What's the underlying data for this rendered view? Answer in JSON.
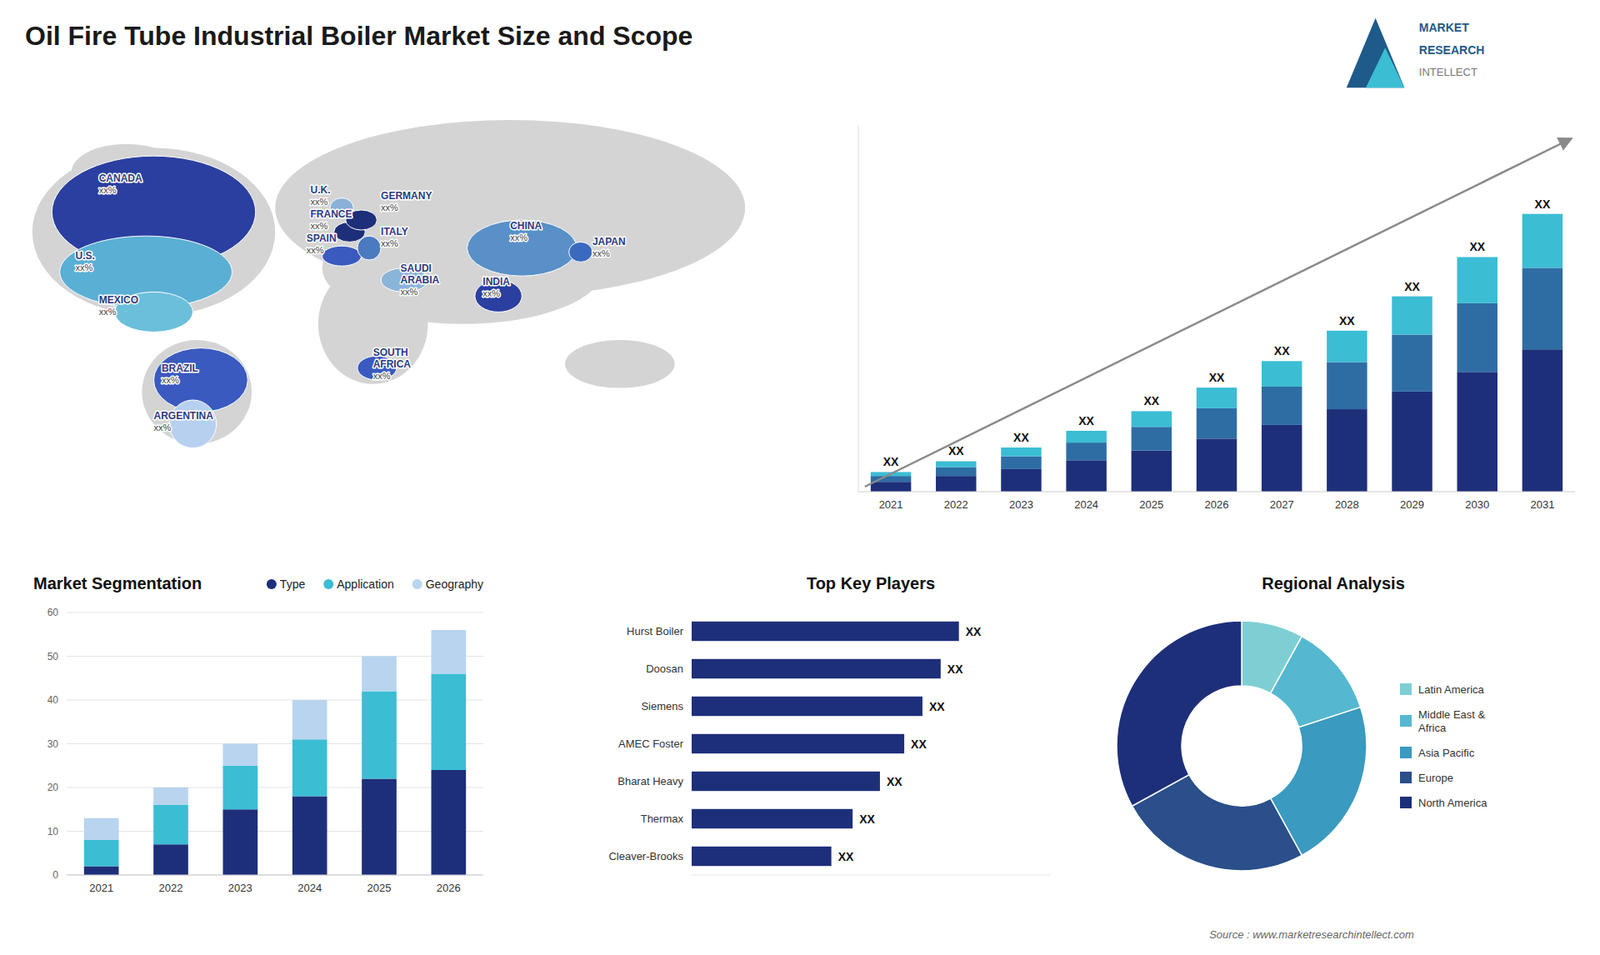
{
  "title": "Oil Fire Tube Industrial Boiler Market Size and Scope",
  "source": "Source : www.marketresearchintellect.com",
  "logo": {
    "text": [
      "MARKET",
      "RESEARCH",
      "INTELLECT"
    ],
    "colors": [
      "#1e5a8a",
      "#3bbdd4"
    ]
  },
  "chart_data": [
    {
      "type": "map",
      "categories": [
        "CANADA",
        "U.S.",
        "MEXICO",
        "BRAZIL",
        "ARGENTINA",
        "U.K.",
        "FRANCE",
        "SPAIN",
        "GERMANY",
        "ITALY",
        "SAUDI\nARABIA",
        "SOUTH\nAFRICA",
        "CHINA",
        "INDIA",
        "JAPAN"
      ],
      "value_labels": [
        "xx%",
        "xx%",
        "xx%",
        "xx%",
        "xx%",
        "xx%",
        "xx%",
        "xx%",
        "xx%",
        "xx%",
        "xx%",
        "xx%",
        "xx%",
        "xx%",
        "xx%"
      ],
      "colors": [
        "#2a3fa0",
        "#5ab0d4",
        "#6bbfda",
        "#3a5abf",
        "#b8d0ef",
        "#8ab0d8",
        "#1e2f7a",
        "#3a5abf",
        "#1e2f7a",
        "#4a7abf",
        "#8ab4d8",
        "#3a5abf",
        "#5a90c8",
        "#2a3fa0",
        "#3a6abf"
      ]
    },
    {
      "type": "bar",
      "stacked": true,
      "categories": [
        "2021",
        "2022",
        "2023",
        "2024",
        "2025",
        "2026",
        "2027",
        "2028",
        "2029",
        "2030",
        "2031"
      ],
      "series": [
        {
          "color": "#1e2f7a",
          "values": [
            1.0,
            1.6,
            2.3,
            3.2,
            4.2,
            5.4,
            6.8,
            8.4,
            10.2,
            12.2,
            14.5
          ]
        },
        {
          "color": "#2e6da4",
          "values": [
            0.6,
            0.9,
            1.3,
            1.8,
            2.4,
            3.1,
            3.9,
            4.8,
            5.8,
            7.0,
            8.3
          ]
        },
        {
          "color": "#3bbdd4",
          "values": [
            0.4,
            0.6,
            0.9,
            1.2,
            1.6,
            2.1,
            2.6,
            3.2,
            3.9,
            4.7,
            5.5
          ],
          "value_labels": [
            "XX",
            "XX",
            "XX",
            "XX",
            "XX",
            "XX",
            "XX",
            "XX",
            "XX",
            "XX",
            "XX"
          ]
        }
      ],
      "ylim": [
        0,
        37.356
      ],
      "tick_labels": "x"
    },
    {
      "type": "bar",
      "stacked": true,
      "title": "Market Segmentation",
      "categories": [
        "2021",
        "2022",
        "2023",
        "2024",
        "2025",
        "2026"
      ],
      "series": [
        {
          "name": "Type",
          "color": "#1e2f7a",
          "values": [
            2,
            7,
            15,
            18,
            22,
            24
          ]
        },
        {
          "name": "Application",
          "color": "#3bbdd4",
          "values": [
            6,
            9,
            10,
            13,
            20,
            22
          ]
        },
        {
          "name": "Geography",
          "color": "#b8d4ef",
          "values": [
            5,
            4,
            5,
            9,
            8,
            10
          ]
        }
      ],
      "ylim": [
        0,
        60
      ],
      "yticks": [
        0,
        10,
        20,
        30,
        40,
        50,
        60
      ],
      "grid": true,
      "legend": "top"
    },
    {
      "type": "bar",
      "orientation": "horizontal",
      "title": "Top Key Players",
      "categories": [
        "Hurst Boiler",
        "Doosan",
        "Siemens",
        "AMEC Foster",
        "Bharat Heavy",
        "Thermax",
        "Cleaver-Brooks"
      ],
      "values": [
        0.88,
        0.82,
        0.76,
        0.7,
        0.62,
        0.53,
        0.46
      ],
      "value_labels": [
        "XX",
        "XX",
        "XX",
        "XX",
        "XX",
        "XX",
        "XX"
      ],
      "color": "#1e2f7a",
      "xlim": [
        0,
        1.18
      ],
      "tick_labels": "y"
    },
    {
      "type": "donut",
      "title": "Regional Analysis",
      "categories": [
        "Latin America",
        "Middle East &\nAfrica",
        "Asia Pacific",
        "Europe",
        "North America"
      ],
      "values": [
        8,
        12,
        22,
        25,
        33
      ],
      "colors": [
        "#7ecfd4",
        "#55b8d0",
        "#3a9abf",
        "#2a4f8a",
        "#1e2f7a"
      ],
      "legend": "right"
    }
  ]
}
